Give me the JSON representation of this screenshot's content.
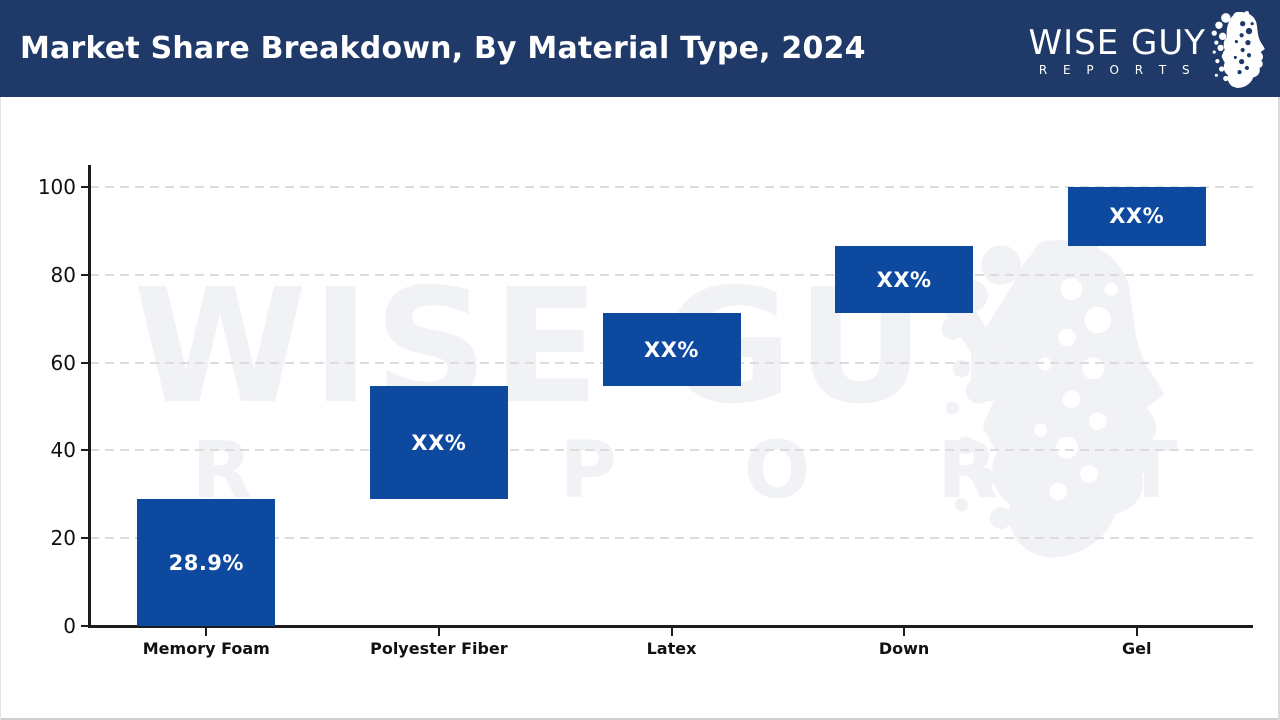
{
  "header": {
    "title": "Market Share Breakdown, By Material Type, 2024",
    "logo": {
      "line1": "WISE GUY",
      "line2": "R E P O R T S"
    }
  },
  "watermark": {
    "line1": "WISE GUY",
    "line2": "R E P O R T S"
  },
  "colors": {
    "header_bg": "#1f3a68",
    "bar": "#0d4a9f",
    "grid": "#dcdcdc",
    "axis": "#1c1c1c",
    "bar_label": "#ffffff",
    "watermark": "#f1f2f5"
  },
  "chart_data": {
    "type": "bar",
    "subtype": "waterfall",
    "title": "Market Share Breakdown, By Material Type, 2024",
    "xlabel": "",
    "ylabel": "",
    "categories": [
      "Memory Foam",
      "Polyester Fiber",
      "Latex",
      "Down",
      "Gel"
    ],
    "segments": [
      {
        "category": "Memory Foam",
        "start": 0,
        "end": 28.9,
        "label": "28.9%"
      },
      {
        "category": "Polyester Fiber",
        "start": 28.9,
        "end": 54.7,
        "label": "XX%"
      },
      {
        "category": "Latex",
        "start": 54.7,
        "end": 71.2,
        "label": "XX%"
      },
      {
        "category": "Down",
        "start": 71.2,
        "end": 86.6,
        "label": "XX%"
      },
      {
        "category": "Gel",
        "start": 86.6,
        "end": 100,
        "label": "XX%"
      }
    ],
    "yticks": [
      0,
      20,
      40,
      60,
      80,
      100
    ],
    "ylim": [
      0,
      105
    ],
    "grid": "dashed-horizontal",
    "legend": "none"
  }
}
